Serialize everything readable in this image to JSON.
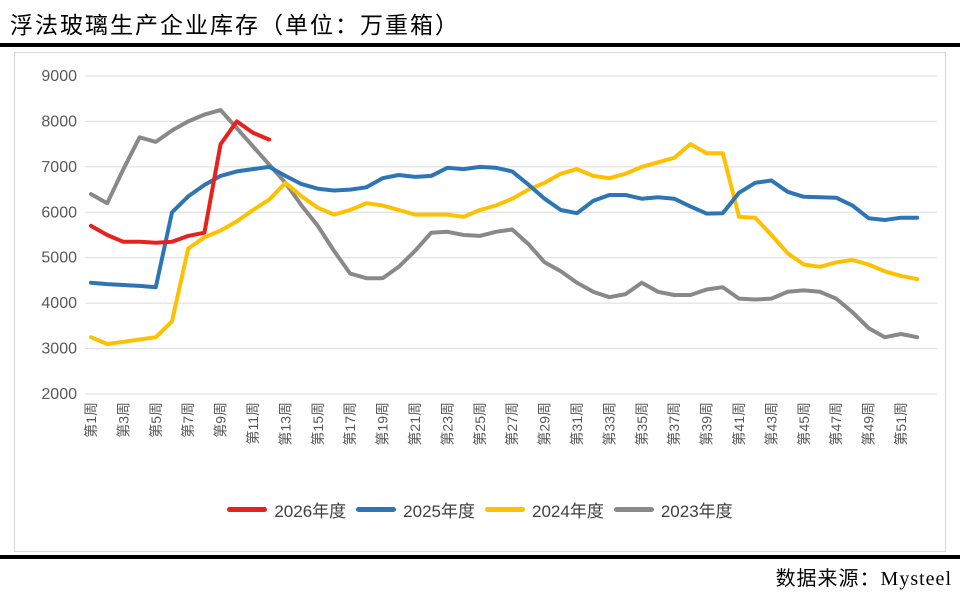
{
  "page": {
    "title": "浮法玻璃生产企业库存（单位：万重箱）",
    "source": "数据来源：Mysteel"
  },
  "chart_data": {
    "type": "line",
    "title": "浮法玻璃生产企业库存（单位：万重箱）",
    "unit": "万重箱",
    "source": "数据来源：Mysteel",
    "grid": "horizontal",
    "legend_position": "bottom",
    "colors": {
      "red": "#e8211d",
      "blue": "#2e75b6",
      "yellow": "#ffc000",
      "gray": "#898989",
      "axis_text": "#595959",
      "gridline": "#dcdcdc"
    },
    "y_axis": {
      "min": 2000,
      "max": 9000,
      "ticks": [
        2000,
        3000,
        4000,
        5000,
        6000,
        7000,
        8000,
        9000
      ]
    },
    "x_axis": {
      "weeks_total": 52,
      "tick_step_weeks": 2,
      "tick_labels": [
        "第1周",
        "第3周",
        "第5周",
        "第7周",
        "第9周",
        "第11周",
        "第13周",
        "第15周",
        "第17周",
        "第19周",
        "第21周",
        "第23周",
        "第25周",
        "第27周",
        "第29周",
        "第31周",
        "第33周",
        "第35周",
        "第37周",
        "第39周",
        "第41周",
        "第43周",
        "第45周",
        "第47周",
        "第49周",
        "第51周"
      ]
    },
    "series": [
      {
        "name": "2026年度",
        "color": "#e8211d",
        "start_week": 1,
        "values": [
          5700,
          5500,
          5350,
          5350,
          5330,
          5350,
          5480,
          5550,
          7500,
          8000,
          7750,
          7600
        ]
      },
      {
        "name": "2025年度",
        "color": "#2e75b6",
        "start_week": 1,
        "values": [
          4450,
          4420,
          4400,
          4380,
          4350,
          6000,
          6350,
          6600,
          6800,
          6900,
          6950,
          7000,
          6800,
          6620,
          6520,
          6480,
          6500,
          6550,
          6750,
          6820,
          6780,
          6800,
          6980,
          6950,
          7000,
          6980,
          6900,
          6610,
          6300,
          6050,
          5980,
          6250,
          6380,
          6380,
          6300,
          6330,
          6300,
          6130,
          5970,
          5980,
          6430,
          6650,
          6700,
          6450,
          6340,
          6330,
          6320,
          6150,
          5870,
          5830,
          5880,
          5880
        ]
      },
      {
        "name": "2024年度",
        "color": "#ffc000",
        "start_week": 1,
        "values": [
          3250,
          3100,
          3150,
          3200,
          3250,
          3600,
          5200,
          5450,
          5600,
          5800,
          6050,
          6280,
          6650,
          6350,
          6100,
          5950,
          6050,
          6200,
          6150,
          6050,
          5950,
          5950,
          5950,
          5900,
          6050,
          6150,
          6300,
          6500,
          6650,
          6850,
          6950,
          6800,
          6750,
          6850,
          7000,
          7100,
          7200,
          7500,
          7300,
          7300,
          5900,
          5880,
          5500,
          5100,
          4850,
          4800,
          4900,
          4950,
          4850,
          4700,
          4600,
          4530
        ]
      },
      {
        "name": "2023年度",
        "color": "#898989",
        "start_week": 1,
        "values": [
          6400,
          6200,
          6950,
          7650,
          7550,
          7800,
          8000,
          8150,
          8250,
          7850,
          7450,
          7050,
          6650,
          6150,
          5700,
          5150,
          4650,
          4550,
          4550,
          4800,
          5150,
          5550,
          5570,
          5500,
          5480,
          5570,
          5620,
          5300,
          4900,
          4700,
          4450,
          4250,
          4130,
          4200,
          4450,
          4250,
          4180,
          4180,
          4300,
          4350,
          4100,
          4080,
          4100,
          4250,
          4280,
          4250,
          4100,
          3800,
          3450,
          3250,
          3320,
          3250
        ]
      }
    ]
  }
}
